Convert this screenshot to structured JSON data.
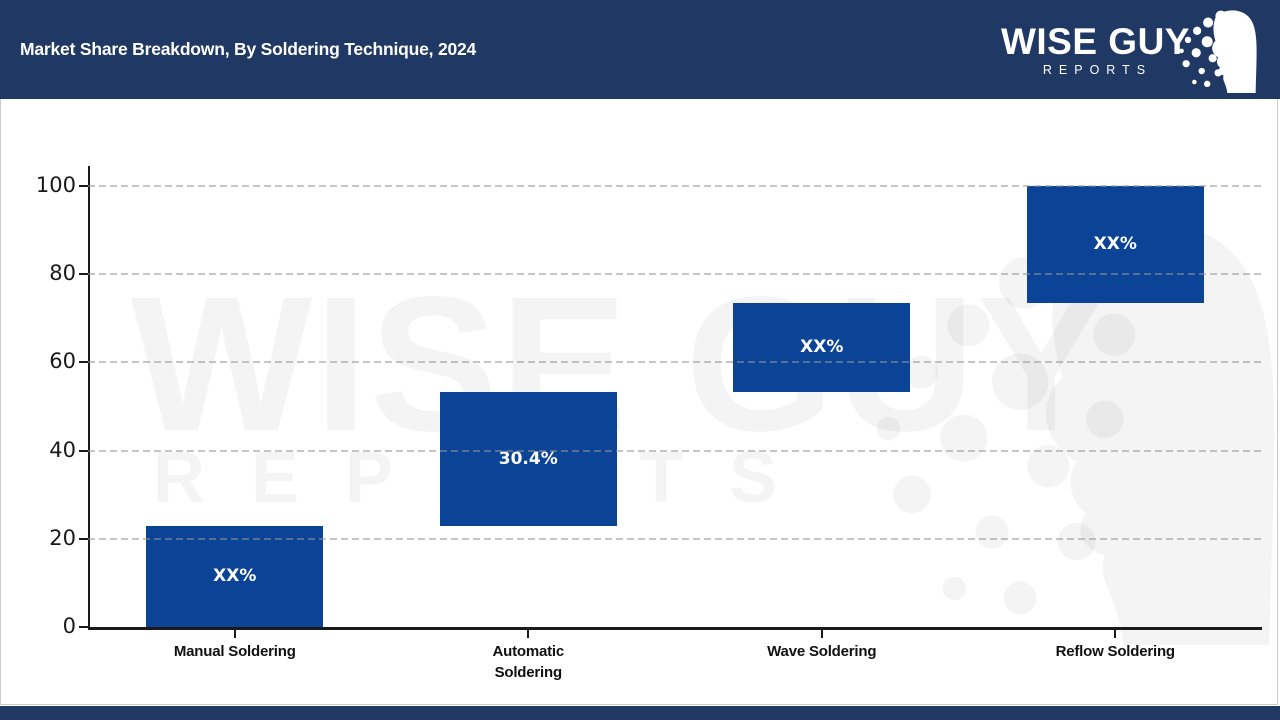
{
  "header": {
    "title": "Market Share Breakdown, By Soldering Technique, 2024",
    "logo": {
      "line1": "WISE GUY",
      "line2": "REPORTS"
    }
  },
  "watermark": {
    "line1": "WISE GUY",
    "line2": "REPORTS"
  },
  "colors": {
    "header_bg": "#203864",
    "bar": "#0b4396",
    "axis": "#1a1a1a",
    "grid": "#969696"
  },
  "chart_data": {
    "type": "bar",
    "subtype": "waterfall",
    "title": "Market Share Breakdown, By Soldering Technique, 2024",
    "categories": [
      "Manual Soldering",
      "Automatic Soldering",
      "Wave Soldering",
      "Reflow Soldering"
    ],
    "category_lines": [
      [
        "Manual Soldering"
      ],
      [
        "Automatic",
        "Soldering"
      ],
      [
        "Wave Soldering"
      ],
      [
        "Reflow Soldering"
      ]
    ],
    "segments": [
      {
        "category": "Manual Soldering",
        "start": 0,
        "end": 23,
        "value": 23,
        "label": "XX%"
      },
      {
        "category": "Automatic Soldering",
        "start": 23,
        "end": 53.4,
        "value": 30.4,
        "label": "30.4%"
      },
      {
        "category": "Wave Soldering",
        "start": 53.4,
        "end": 73.5,
        "value": 20.1,
        "label": "XX%"
      },
      {
        "category": "Reflow Soldering",
        "start": 73.5,
        "end": 100,
        "value": 26.5,
        "label": "XX%"
      }
    ],
    "xlabel": "",
    "ylabel": "",
    "yticks": [
      0,
      20,
      40,
      60,
      80,
      100
    ],
    "ylim": [
      0,
      105
    ],
    "grid": "horizontal-dashed",
    "legend": "none"
  }
}
